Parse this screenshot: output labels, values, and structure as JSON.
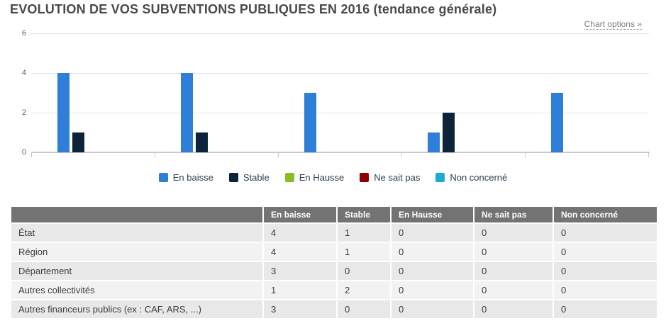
{
  "title": "EVOLUTION DE VOS SUBVENTIONS PUBLIQUES EN 2016 (tendance générale)",
  "chart_options_label": "Chart options »",
  "chart_data": {
    "type": "bar",
    "title": "EVOLUTION DE VOS SUBVENTIONS PUBLIQUES EN 2016 (tendance générale)",
    "categories": [
      "État",
      "Région",
      "Département",
      "Autres collectivités",
      "Autres financeurs publics (ex : CAF, ARS, ...)"
    ],
    "series": [
      {
        "name": "En baisse",
        "color": "#2f7ed8",
        "values": [
          4,
          4,
          3,
          1,
          3
        ]
      },
      {
        "name": "Stable",
        "color": "#0d233a",
        "values": [
          1,
          1,
          0,
          2,
          0
        ]
      },
      {
        "name": "En Hausse",
        "color": "#8bbc21",
        "values": [
          0,
          0,
          0,
          0,
          0
        ]
      },
      {
        "name": "Ne sait pas",
        "color": "#910000",
        "values": [
          0,
          0,
          0,
          0,
          0
        ]
      },
      {
        "name": "Non concerné",
        "color": "#1aadce",
        "values": [
          0,
          0,
          0,
          0,
          0
        ]
      }
    ],
    "xlabel": "",
    "ylabel": "",
    "ylim": [
      0,
      6
    ],
    "yticks": [
      0,
      2,
      4,
      6
    ],
    "grid": true,
    "legend_position": "bottom",
    "x_tick_labels_visible": false
  },
  "table": {
    "columns": [
      "",
      "En baisse",
      "Stable",
      "En Hausse",
      "Ne sait pas",
      "Non concerné"
    ],
    "rows": [
      {
        "label": "État",
        "values": [
          4,
          1,
          0,
          0,
          0
        ]
      },
      {
        "label": "Région",
        "values": [
          4,
          1,
          0,
          0,
          0
        ]
      },
      {
        "label": "Département",
        "values": [
          3,
          0,
          0,
          0,
          0
        ]
      },
      {
        "label": "Autres collectivités",
        "values": [
          1,
          2,
          0,
          0,
          0
        ]
      },
      {
        "label": "Autres financeurs publics (ex : CAF, ARS, ...)",
        "values": [
          3,
          0,
          0,
          0,
          0
        ]
      }
    ]
  }
}
